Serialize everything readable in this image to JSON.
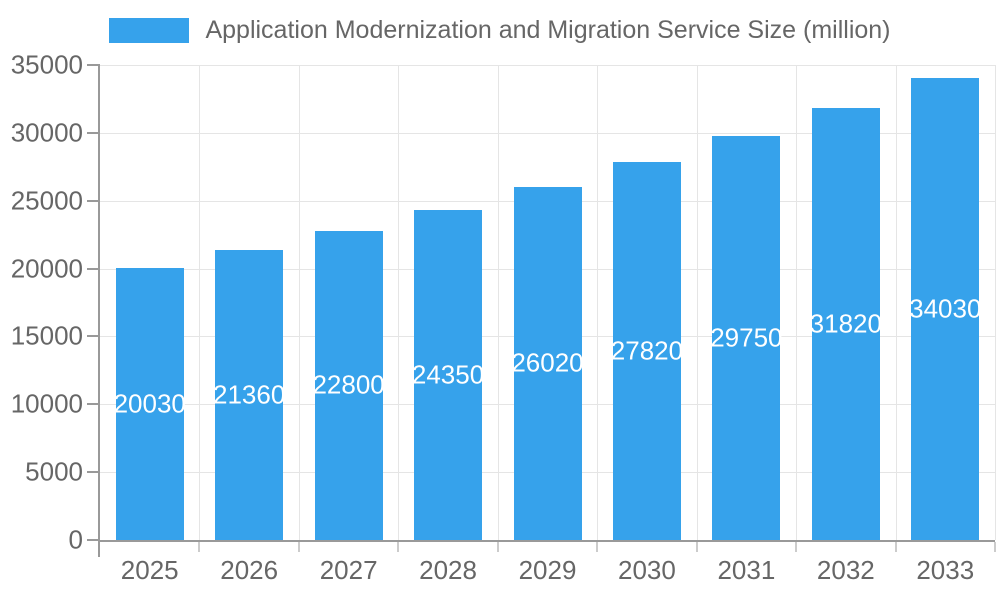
{
  "chart_data": {
    "type": "bar",
    "title": "Application Modernization and Migration Service Size (million)",
    "categories": [
      "2025",
      "2026",
      "2027",
      "2028",
      "2029",
      "2030",
      "2031",
      "2032",
      "2033"
    ],
    "values": [
      20030,
      21360,
      22800,
      24350,
      26020,
      27820,
      29750,
      31820,
      34030
    ],
    "bar_labels": [
      "20030",
      "21360",
      "22800",
      "24350",
      "26020",
      "27820",
      "29750",
      "31820",
      "34030"
    ],
    "xlabel": "",
    "ylabel": "",
    "ylim": [
      0,
      35000
    ],
    "ytick_interval": 5000,
    "ytick_labels": [
      "0",
      "5000",
      "10000",
      "15000",
      "20000",
      "25000",
      "30000",
      "35000"
    ],
    "legend_position": "top-center",
    "grid": "on",
    "colors": {
      "bar": "#36A2EB",
      "bar_value_text": "#ffffff",
      "axis_text": "#666666",
      "legend_text": "#666666",
      "grid_line": "#e5e5e5",
      "axis_line": "#999999",
      "x_tick": "#cccccc"
    }
  }
}
